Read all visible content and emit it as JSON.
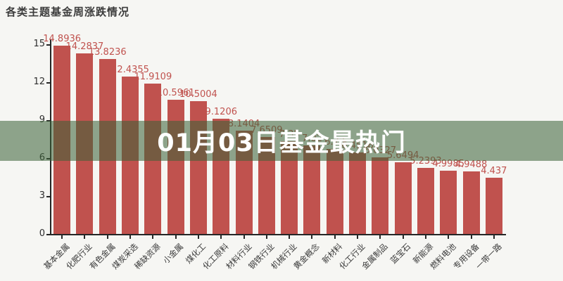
{
  "title": "各类主题基金周涨跌情况",
  "overlay": {
    "text": "01月03日基金最热门",
    "bg_color": "rgba(58,98,56,0.56)",
    "text_color": "#ffffff"
  },
  "chart_data": {
    "type": "bar",
    "title": "各类主题基金周涨跌情况",
    "categories": [
      "基本金属",
      "化肥行业",
      "有色金属",
      "煤炭采选",
      "稀缺资源",
      "小金属",
      "煤化工",
      "化工原料",
      "材料行业",
      "钢铁行业",
      "机械行业",
      "黄金概念",
      "新材料",
      "化工行业",
      "金属制品",
      "蓝宝石",
      "新能源",
      "燃料电池",
      "专用设备",
      "一带一路"
    ],
    "values": [
      14.8936,
      14.2837,
      13.8236,
      12.4355,
      11.9109,
      10.5961,
      10.5004,
      9.1206,
      8.1404,
      7.6509,
      7.35,
      7.02,
      6.73,
      6.4516,
      6.0327,
      5.6494,
      5.2393,
      4.9985,
      4.9488,
      4.437
    ],
    "labels": [
      "14.8936",
      "14.2837",
      "13.8236",
      "12.4355",
      "11.9109",
      "10.5961",
      "10.5004",
      "9.1206",
      "8.1404",
      "7.6509",
      "7.35",
      "7.02",
      "6.73",
      "6.4516",
      "6.0327",
      "5.6494",
      "5.2393",
      "4.9985",
      "4.9488",
      "4.437"
    ],
    "xlabel": "",
    "ylabel": "",
    "ylim": [
      0,
      15
    ],
    "yticks": [
      0,
      3,
      6,
      9,
      12,
      15
    ],
    "grid": false,
    "legend": false,
    "bar_color": "#c0524e",
    "value_label_color": "#c0524e",
    "axis_color": "#262626",
    "background_color": "#f6f6f3"
  }
}
